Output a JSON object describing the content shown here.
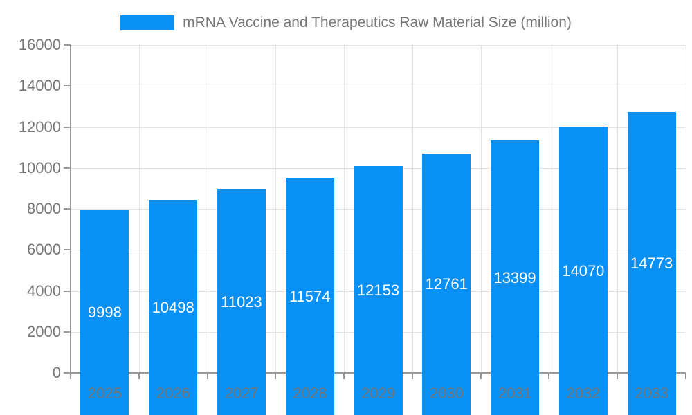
{
  "chart_data": {
    "type": "bar",
    "title": "mRNA Vaccine and Therapeutics Raw Material Size (million)",
    "categories": [
      "2025",
      "2026",
      "2027",
      "2028",
      "2029",
      "2030",
      "2031",
      "2032",
      "2033"
    ],
    "values": [
      9998,
      10498,
      11023,
      11574,
      12153,
      12761,
      13399,
      14070,
      14773
    ],
    "xlabel": "",
    "ylabel": "",
    "ylim": [
      0,
      16000
    ],
    "ytick_step": 2000,
    "grid": "both",
    "legend_position": "top-center",
    "value_labels": "centered-inside-bars",
    "colors": {
      "bar": "#0990f5",
      "value_label": "#ffffff",
      "axis_text": "#757575",
      "legend_text": "#757575",
      "gridline": "#e3e3e3",
      "axis_line": "#999999",
      "background": "#ffffff"
    }
  }
}
